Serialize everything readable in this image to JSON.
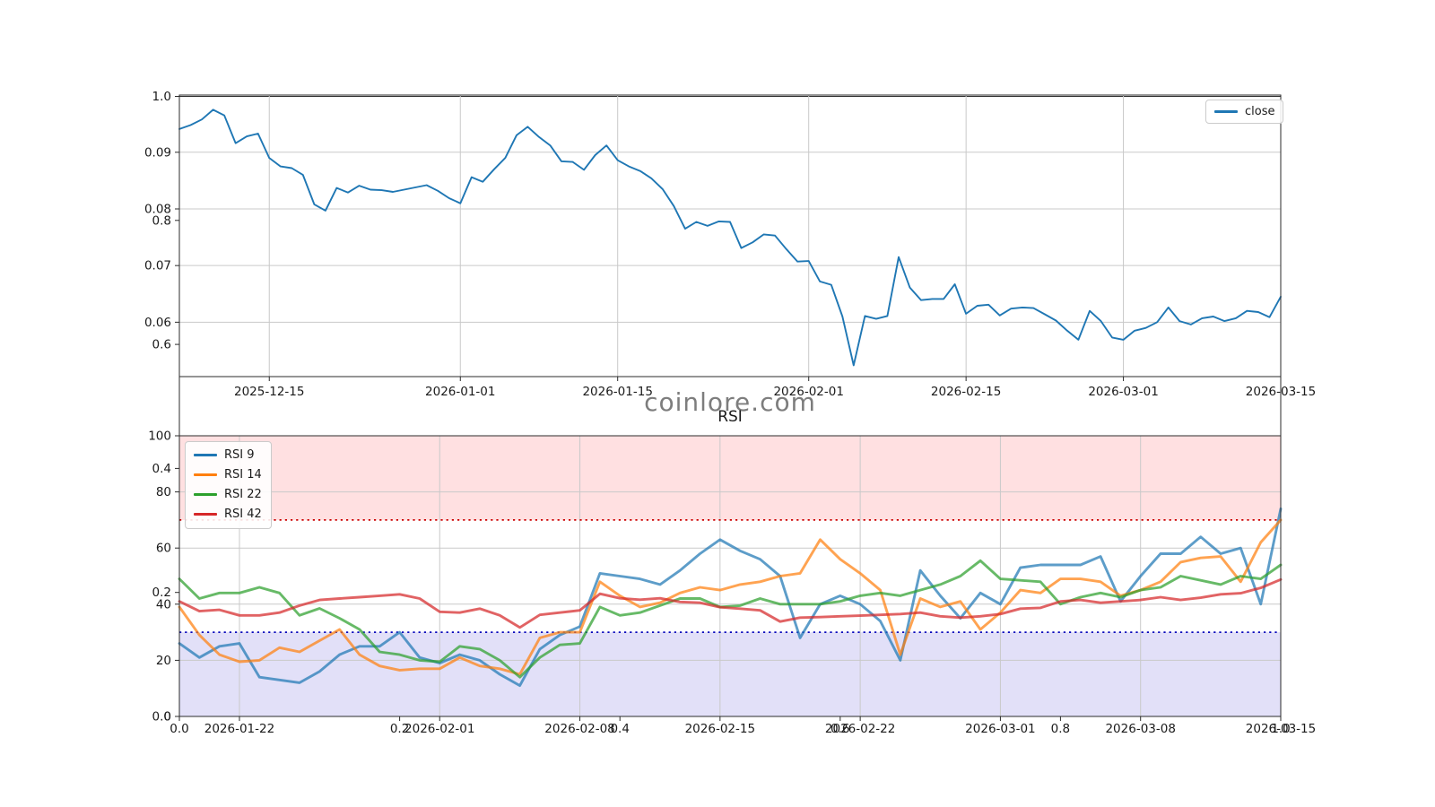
{
  "figure": {
    "watermark": "coinlore.com",
    "watermark_color": "#7d7d7d"
  },
  "chart_data": [
    {
      "type": "line",
      "name": "price-close",
      "interval": "daily",
      "x_start": "2025-12-07",
      "x_end": "2026-03-15",
      "x_tick_labels": [
        "2025-12-15",
        "2026-01-01",
        "2026-01-15",
        "2026-02-01",
        "2026-02-15",
        "2026-03-01",
        "2026-03-15"
      ],
      "y_tick_labels": [
        "0.09",
        "0.08",
        "0.07",
        "0.06"
      ],
      "y_tick_values": [
        0.09,
        0.08,
        0.07,
        0.06
      ],
      "ylim": [
        0.0504,
        0.1001
      ],
      "grid": true,
      "legend_position": "upper right",
      "series": [
        {
          "name": "close",
          "color": "#1f77b4",
          "values": [
            0.0941,
            0.0948,
            0.0958,
            0.0975,
            0.0965,
            0.0916,
            0.0928,
            0.0933,
            0.089,
            0.0875,
            0.0872,
            0.086,
            0.0808,
            0.0797,
            0.0837,
            0.0829,
            0.0841,
            0.0834,
            0.0833,
            0.083,
            0.0834,
            0.0838,
            0.0842,
            0.0832,
            0.0819,
            0.081,
            0.0856,
            0.0848,
            0.087,
            0.089,
            0.093,
            0.0945,
            0.0927,
            0.0912,
            0.0884,
            0.0883,
            0.0869,
            0.0895,
            0.0912,
            0.0886,
            0.0875,
            0.0867,
            0.0854,
            0.0835,
            0.0805,
            0.0765,
            0.0777,
            0.077,
            0.0778,
            0.0777,
            0.0731,
            0.0741,
            0.0755,
            0.0753,
            0.0729,
            0.0707,
            0.0708,
            0.0672,
            0.0666,
            0.061,
            0.0524,
            0.0611,
            0.0606,
            0.0611,
            0.0715,
            0.0661,
            0.0639,
            0.0641,
            0.0641,
            0.0667,
            0.0615,
            0.0629,
            0.0631,
            0.0612,
            0.0624,
            0.0626,
            0.0625,
            0.0614,
            0.0603,
            0.0585,
            0.0569,
            0.062,
            0.0602,
            0.0573,
            0.0569,
            0.0585,
            0.059,
            0.06,
            0.0626,
            0.0602,
            0.0596,
            0.0607,
            0.061,
            0.0602,
            0.0607,
            0.062,
            0.0618,
            0.0609,
            0.0645
          ]
        }
      ]
    },
    {
      "type": "line",
      "name": "rsi",
      "title": "RSI",
      "interval": "daily",
      "x_start": "2026-01-19",
      "x_end": "2026-03-15",
      "x_tick_labels": [
        "2026-01-22",
        "2026-02-01",
        "2026-02-08",
        "2026-02-15",
        "2026-02-22",
        "2026-03-01",
        "2026-03-08",
        "2026-03-15"
      ],
      "y_tick_labels": [
        "100",
        "80",
        "60",
        "40",
        "20",
        "0"
      ],
      "y_tick_values": [
        100,
        80,
        60,
        40,
        20,
        0
      ],
      "ylim": [
        0,
        100
      ],
      "grid": true,
      "overbought_level": 70,
      "oversold_level": 30,
      "overbought_fill": "rgba(255,0,10,0.12)",
      "oversold_fill": "rgba(60,50,205,0.15)",
      "overbought_line_color": "#cc0000",
      "oversold_line_color": "#0000bb",
      "line_alpha": 0.72,
      "legend_position": "upper left",
      "series": [
        {
          "name": "RSI 9",
          "color": "#1f77b4",
          "values": [
            26,
            21,
            25,
            26,
            14,
            13,
            12,
            16,
            22,
            25,
            25,
            30,
            21,
            19,
            22,
            20,
            15,
            11,
            24,
            29,
            32,
            51,
            50,
            49,
            47,
            52,
            58,
            63,
            59,
            56,
            50,
            28,
            40,
            43,
            40,
            34,
            20,
            52,
            43,
            35,
            44,
            40,
            53,
            54,
            54,
            54,
            57,
            41,
            50,
            58,
            58,
            64,
            58,
            60,
            40,
            74
          ]
        },
        {
          "name": "RSI 14",
          "color": "#ff7f0e",
          "values": [
            39,
            29,
            22,
            19.5,
            20,
            24.5,
            23,
            27,
            31,
            22,
            18,
            16.5,
            17,
            17,
            21,
            18,
            17,
            15,
            28,
            30,
            30,
            48,
            43,
            39,
            40.5,
            44,
            46,
            45,
            47,
            48,
            50,
            51,
            63,
            56,
            51,
            45,
            22,
            42,
            39,
            41,
            31,
            37,
            45,
            44,
            49,
            49,
            48,
            43,
            45,
            48,
            55,
            56.5,
            57,
            48,
            62,
            70
          ]
        },
        {
          "name": "RSI 22",
          "color": "#2ca02c",
          "values": [
            49,
            42,
            44,
            44,
            46,
            44,
            36,
            38.5,
            35,
            31,
            23,
            22,
            20,
            19.5,
            25,
            24,
            20,
            14,
            21,
            25.5,
            26,
            39,
            36,
            37,
            39.5,
            42,
            42,
            39,
            39.5,
            42,
            40,
            40,
            40,
            41,
            43,
            44,
            43,
            45,
            47,
            50,
            55.5,
            49,
            48.5,
            48,
            40,
            42.5,
            44,
            42.5,
            45,
            46,
            50,
            48.5,
            47,
            50,
            49,
            54
          ]
        },
        {
          "name": "RSI 42",
          "color": "#d62728",
          "values": [
            41,
            37.5,
            38,
            36,
            36,
            37,
            39.5,
            41.5,
            42,
            42.5,
            43,
            43.5,
            42,
            37.3,
            37,
            38.4,
            36,
            31.7,
            36.2,
            37,
            37.8,
            43.7,
            42.1,
            41.6,
            42.1,
            40.8,
            40.5,
            38.9,
            38.4,
            37.8,
            33.8,
            35.2,
            35.4,
            35.7,
            35.9,
            36.2,
            36.5,
            37,
            35.7,
            35.2,
            35.7,
            36.5,
            38.4,
            38.7,
            41,
            41.5,
            40.5,
            41,
            41.5,
            42.5,
            41.5,
            42.3,
            43.5,
            43.9,
            45.8,
            48.8
          ]
        }
      ]
    }
  ],
  "outer_axes": {
    "x_tick_labels": [
      "0.0",
      "0.2",
      "0.4",
      "0.6",
      "0.8",
      "1.0"
    ],
    "y_tick_labels": [
      "1.0",
      "0.8",
      "0.6",
      "0.4",
      "0.2",
      "0.0"
    ]
  }
}
